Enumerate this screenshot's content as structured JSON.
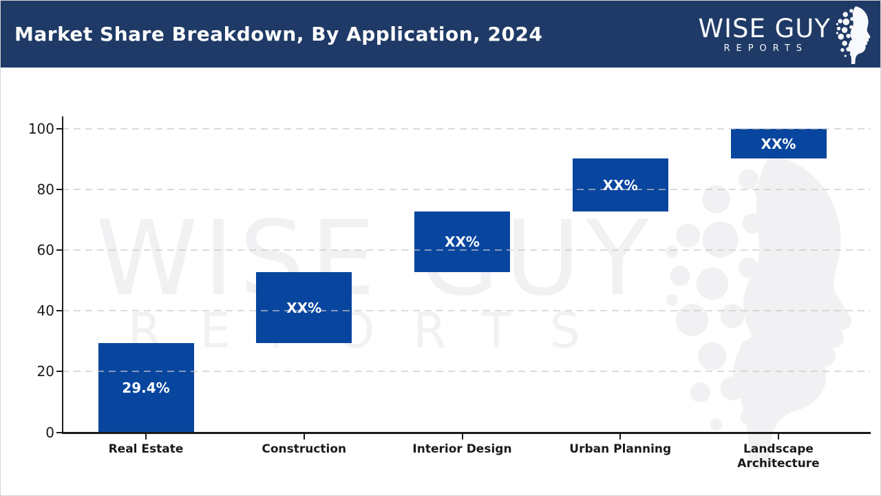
{
  "header": {
    "title": "Market Share Breakdown, By Application, 2024",
    "logo": {
      "primary": "WISE GUY",
      "secondary": "REPORTS"
    },
    "background_color": "#1f3a66"
  },
  "watermark": {
    "primary": "WISE GUY",
    "secondary": "REPORTS"
  },
  "chart_data": {
    "type": "bar",
    "subtype": "waterfall",
    "title": "Market Share Breakdown, By Application, 2024",
    "categories": [
      "Real Estate",
      "Construction",
      "Interior Design",
      "Urban Planning",
      "Landscape Architecture"
    ],
    "bars": [
      {
        "category": "Real Estate",
        "start": 0,
        "end": 29.4,
        "label": "29.4%"
      },
      {
        "category": "Construction",
        "start": 29.4,
        "end": 52.7,
        "label": "XX%"
      },
      {
        "category": "Interior Design",
        "start": 52.7,
        "end": 72.7,
        "label": "XX%"
      },
      {
        "category": "Urban Planning",
        "start": 72.7,
        "end": 90.2,
        "label": "XX%"
      },
      {
        "category": "Landscape Architecture",
        "start": 90.2,
        "end": 100,
        "label": "XX%"
      }
    ],
    "yticks": [
      0,
      20,
      40,
      60,
      80,
      100
    ],
    "ylim": [
      0,
      104
    ],
    "xlabel": "",
    "ylabel": "",
    "grid": "dashed-horizontal",
    "legend": "none",
    "bar_color": "#08459e",
    "value_label_color": "#ffffff",
    "axis_color": "#1a1a1a",
    "grid_color": "#d9d9d9"
  }
}
